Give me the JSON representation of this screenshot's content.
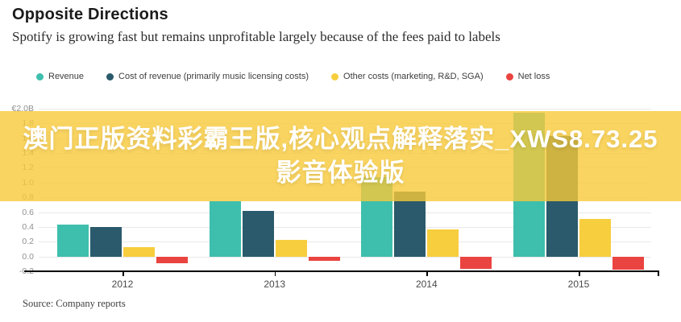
{
  "header": {
    "title": "Opposite Directions",
    "subtitle": "Spotify is growing fast but remains unprofitable largely because of the fees paid to labels"
  },
  "overlay": {
    "line1": "澳门正版资料彩霸王版,核心观点解释落实_XWS8.73.25",
    "line2": "影音体验版",
    "bg_color": "#F7C938",
    "text_color": "#FFFFFF"
  },
  "source": "Source: Company reports",
  "chart_data": {
    "type": "bar",
    "title": "Opposite Directions",
    "subtitle": "Spotify is growing fast but remains unprofitable largely because of the fees paid to labels",
    "categories": [
      "2012",
      "2013",
      "2014",
      "2015"
    ],
    "series": [
      {
        "name": "Revenue",
        "color": "#3EBFAD",
        "values": [
          0.43,
          0.75,
          1.08,
          1.95
        ]
      },
      {
        "name": "Cost of revenue (primarily music licensing costs)",
        "color": "#2A5A6C",
        "values": [
          0.4,
          0.62,
          0.88,
          1.63
        ]
      },
      {
        "name": "Other costs (marketing, R&D, SGA)",
        "color": "#F7CE3E",
        "values": [
          0.13,
          0.22,
          0.37,
          0.51
        ]
      },
      {
        "name": "Net loss",
        "color": "#E94440",
        "values": [
          -0.09,
          -0.06,
          -0.17,
          -0.18
        ]
      }
    ],
    "y_ticks": [
      "€2.0B",
      "1.8",
      "1.6",
      "1.4",
      "1.2",
      "1.0",
      "0.8",
      "0.6",
      "0.4",
      "0.2",
      "0.0",
      "-0.2"
    ],
    "ylim": [
      -0.2,
      2.0
    ],
    "xlabel": "",
    "ylabel": "",
    "grid": true,
    "legend_position": "top",
    "axis_color": "#000000",
    "gridline_color": "#E8E8E8"
  }
}
